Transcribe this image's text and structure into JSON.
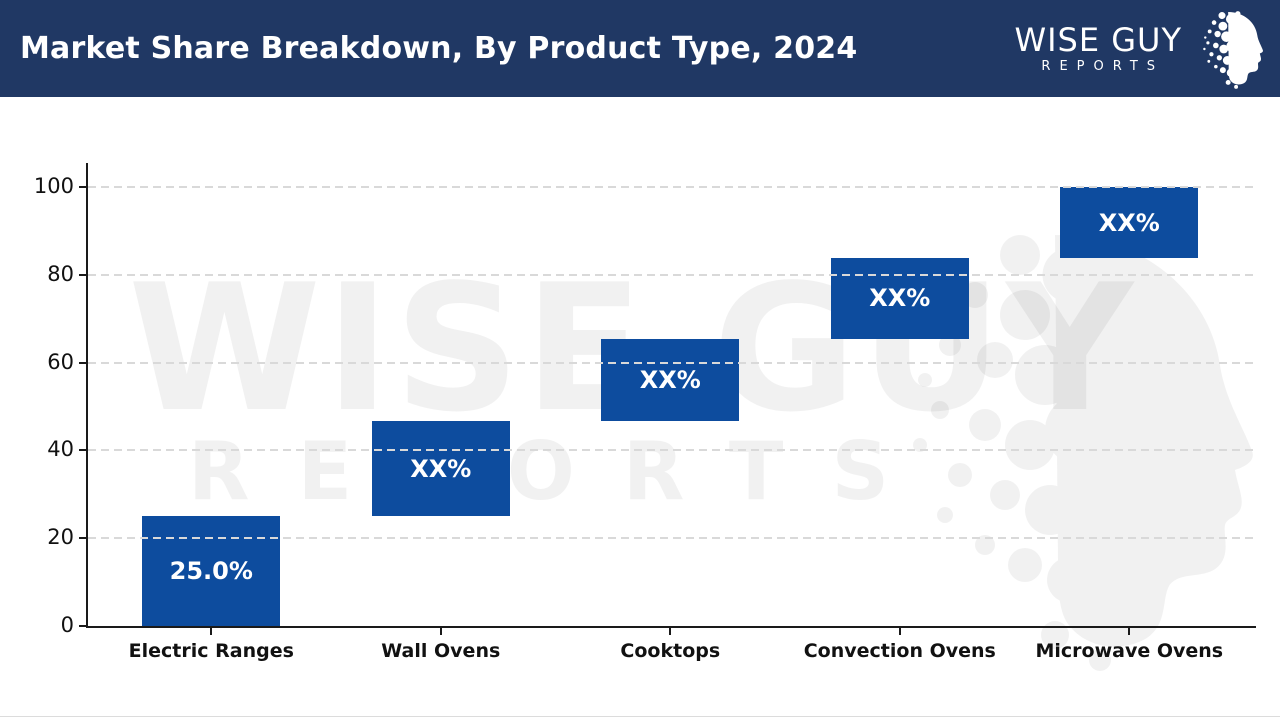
{
  "header": {
    "title": "Market Share Breakdown, By Product Type, 2024",
    "logo": {
      "line1": "WISE GUY",
      "line2": "REPORTS"
    }
  },
  "watermark": {
    "line1": "WISE GUY",
    "line2": "REPORTS"
  },
  "colors": {
    "header_bg": "#203864",
    "bar": "#0D4C9E",
    "bar_label": "#ffffff",
    "grid": "#d9d9d9",
    "axis": "#1a1a1a"
  },
  "chart_data": {
    "type": "bar",
    "subtype": "waterfall",
    "title": "Market Share Breakdown, By Product Type, 2024",
    "categories": [
      "Electric Ranges",
      "Wall Ovens",
      "Cooktops",
      "Convection Ovens",
      "Microwave Ovens"
    ],
    "bars": [
      {
        "category": "Electric Ranges",
        "start": 0,
        "end": 25.0,
        "label": "25.0%"
      },
      {
        "category": "Wall Ovens",
        "start": 25.0,
        "end": 46.7,
        "label": "XX%"
      },
      {
        "category": "Cooktops",
        "start": 46.7,
        "end": 65.3,
        "label": "XX%"
      },
      {
        "category": "Convection Ovens",
        "start": 65.4,
        "end": 83.8,
        "label": "XX%"
      },
      {
        "category": "Microwave Ovens",
        "start": 83.8,
        "end": 100.0,
        "label": "XX%"
      }
    ],
    "yticks": [
      0,
      20,
      40,
      60,
      80,
      100
    ],
    "ylim": [
      0,
      105.5
    ],
    "xlabel": "",
    "ylabel": "",
    "grid": "horizontal-dashed",
    "legend": "none"
  }
}
